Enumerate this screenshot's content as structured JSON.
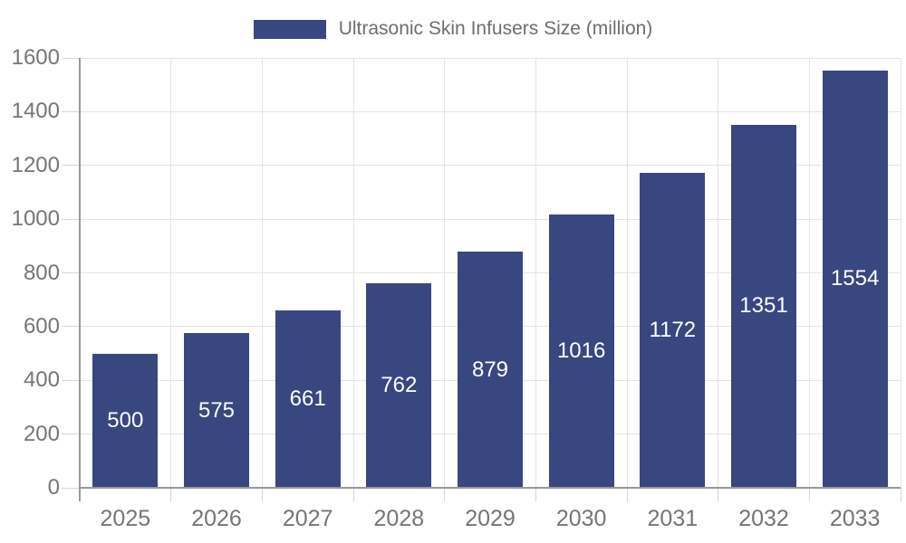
{
  "chart_data": {
    "type": "bar",
    "title": "",
    "series_name": "Ultrasonic Skin Infusers Size (million)",
    "categories": [
      "2025",
      "2026",
      "2027",
      "2028",
      "2029",
      "2030",
      "2031",
      "2032",
      "2033"
    ],
    "values": [
      500,
      575,
      661,
      762,
      879,
      1016,
      1172,
      1351,
      1554
    ],
    "yticks": [
      0,
      200,
      400,
      600,
      800,
      1000,
      1200,
      1400,
      1600
    ],
    "ylim": [
      0,
      1600
    ],
    "xlabel": "",
    "ylabel": "",
    "grid": true,
    "legend_position": "top",
    "bar_color": "#394780",
    "value_label_color": "#ffffff",
    "axis_text_color": "#757575",
    "axis_line_color": "#999999",
    "grid_color": "#e4e4e4",
    "tick_color": "#d6d6d6",
    "background_color": "#ffffff"
  }
}
